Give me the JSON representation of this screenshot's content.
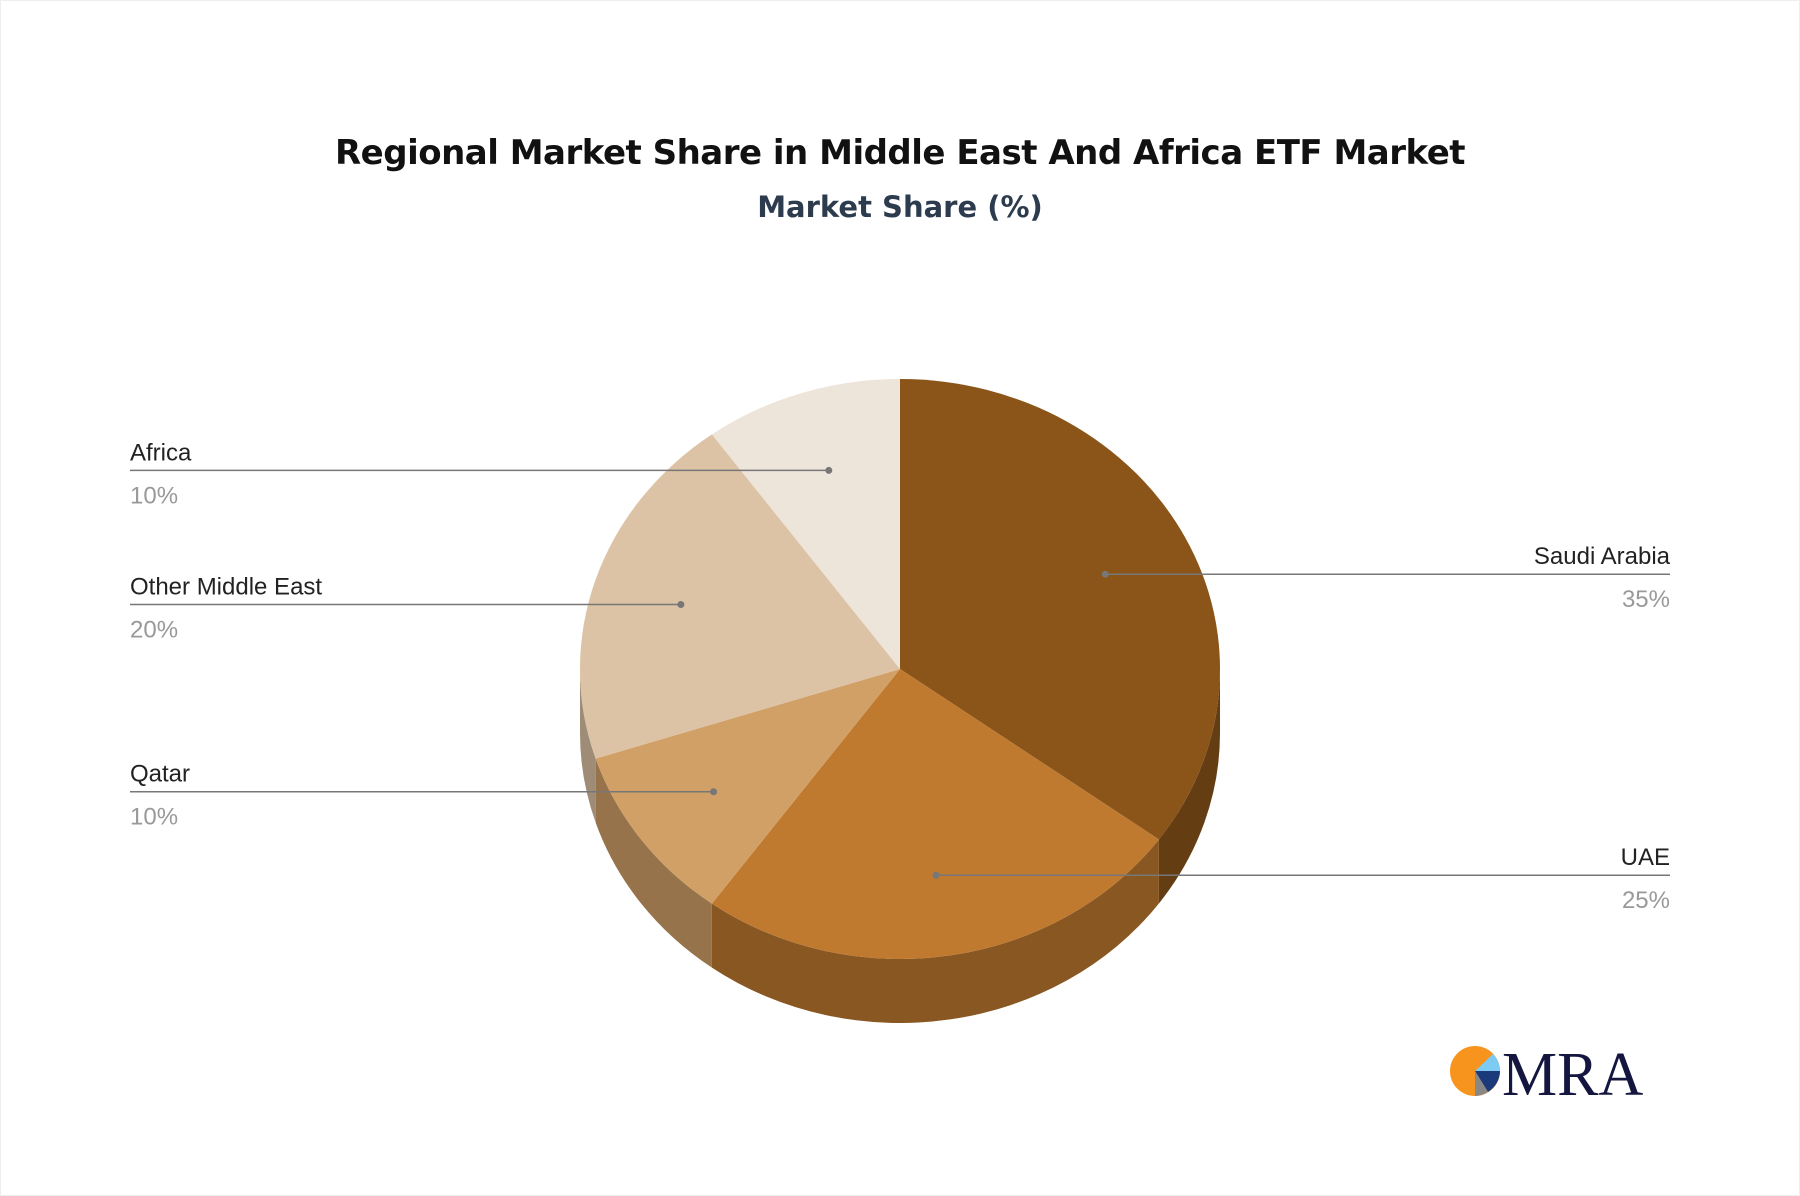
{
  "chart_data": {
    "type": "pie",
    "title": "Regional Market Share in Middle East And Africa ETF Market",
    "subtitle": "Market Share (%)",
    "style": "3d",
    "slices": [
      {
        "label": "Saudi Arabia",
        "value": 35,
        "display": "35%",
        "color": "#8b5519",
        "side": "right"
      },
      {
        "label": "UAE",
        "value": 25,
        "display": "25%",
        "color": "#bf7a30",
        "side": "right"
      },
      {
        "label": "Qatar",
        "value": 10,
        "display": "10%",
        "color": "#d1a067",
        "side": "left"
      },
      {
        "label": "Other Middle East",
        "value": 20,
        "display": "20%",
        "color": "#dcc3a5",
        "side": "left"
      },
      {
        "label": "Africa",
        "value": 10,
        "display": "10%",
        "color": "#ede4da",
        "side": "left"
      }
    ]
  },
  "logo": {
    "text": "MRA",
    "colors": [
      "#f7941d",
      "#7dcbf2",
      "#1b3a7a",
      "#888888",
      "#14163f"
    ]
  }
}
